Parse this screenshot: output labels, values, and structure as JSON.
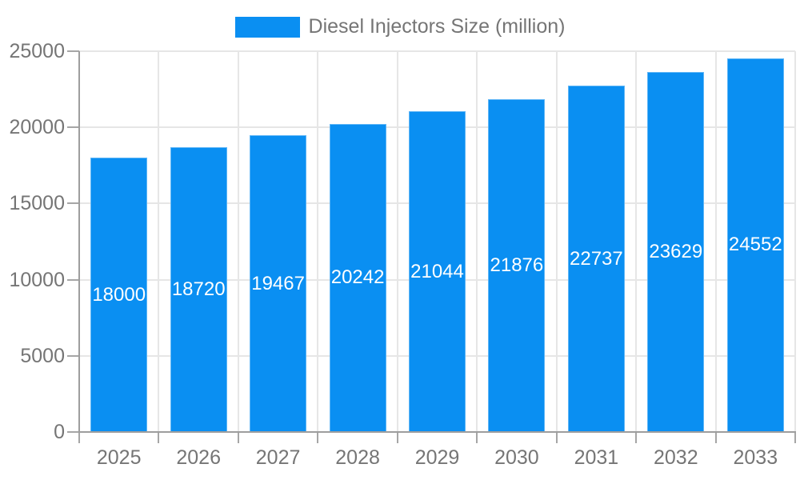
{
  "chart_data": {
    "type": "bar",
    "title": "Diesel Injectors Size (million)",
    "legend_label": "Diesel Injectors Size (million)",
    "legend_position": "top",
    "categories": [
      "2025",
      "2026",
      "2027",
      "2028",
      "2029",
      "2030",
      "2031",
      "2032",
      "2033"
    ],
    "values": [
      18000,
      18720,
      19467,
      20242,
      21044,
      21876,
      22737,
      23629,
      24552
    ],
    "xlabel": "",
    "ylabel": "",
    "ylim": [
      0,
      25000
    ],
    "yticks": [
      0,
      5000,
      10000,
      15000,
      20000,
      25000
    ],
    "ytick_labels": [
      "0",
      "5000",
      "10000",
      "15000",
      "20000",
      "25000"
    ],
    "grid": true,
    "bar_label_position": "inside-center",
    "colors": {
      "bar": "#0a8ff2",
      "gridline": "#e6e6e6",
      "axis": "#9e9e9e",
      "tick": "#a6a6a6",
      "axis_text": "#757575",
      "bar_label_text": "#ffffff",
      "background": "#ffffff"
    }
  }
}
